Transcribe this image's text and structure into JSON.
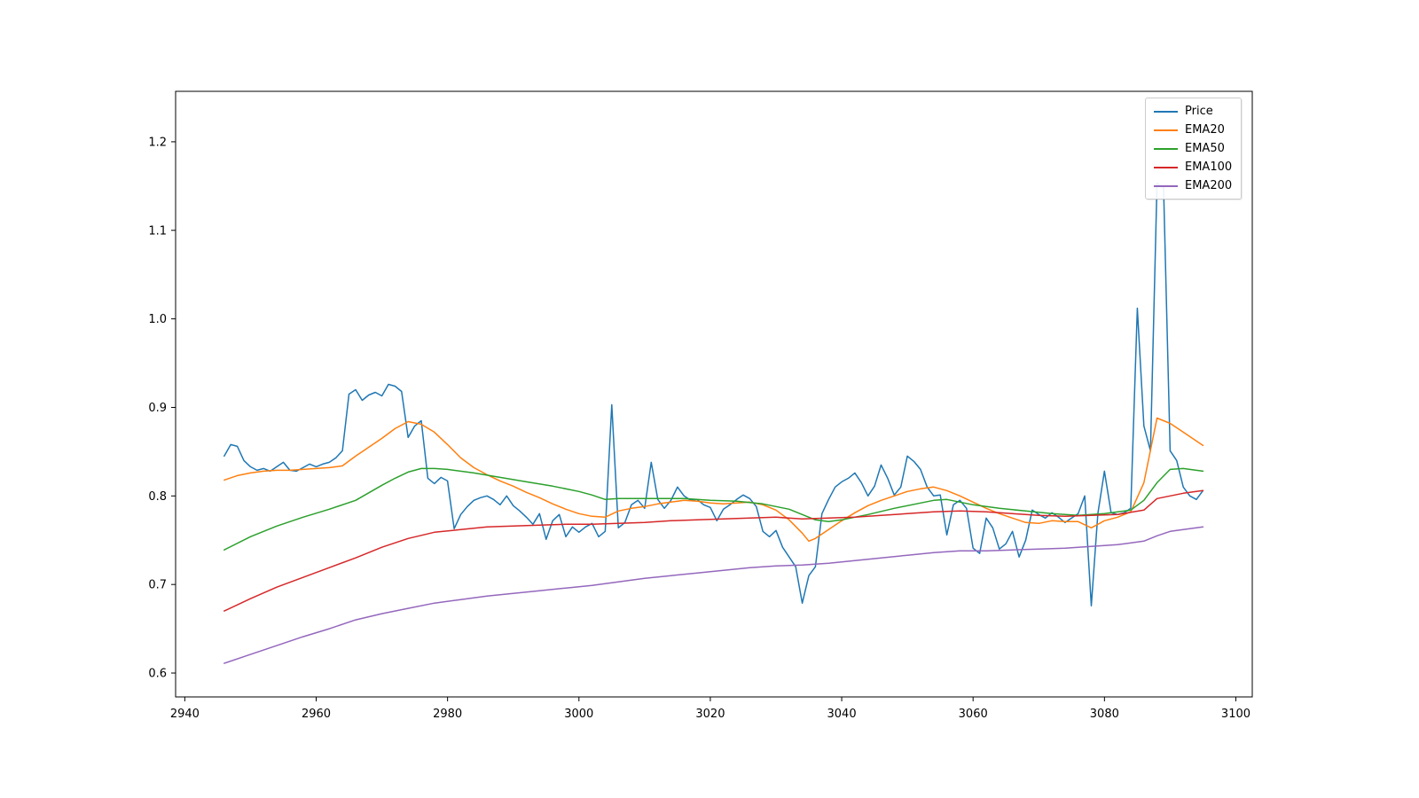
{
  "figure": {
    "background": "#ffffff",
    "plot_border_color": "#000000"
  },
  "chart_data": {
    "type": "line",
    "title": "",
    "xlabel": "",
    "ylabel": "",
    "grid": false,
    "legend_position": "upper right",
    "xlim": [
      2938.6,
      3102.5
    ],
    "ylim": [
      0.573,
      1.257
    ],
    "x_ticks": [
      2940,
      2960,
      2980,
      3000,
      3020,
      3040,
      3060,
      3080,
      3100
    ],
    "y_ticks": [
      0.6,
      0.7,
      0.8,
      0.9,
      1.0,
      1.1,
      1.2
    ],
    "series": [
      {
        "name": "Price",
        "color": "#1f77b4",
        "x_start": 2946,
        "x_step": 1,
        "values": [
          0.845,
          0.858,
          0.856,
          0.84,
          0.833,
          0.829,
          0.831,
          0.828,
          0.833,
          0.838,
          0.829,
          0.828,
          0.832,
          0.836,
          0.833,
          0.836,
          0.838,
          0.843,
          0.851,
          0.915,
          0.92,
          0.908,
          0.914,
          0.917,
          0.913,
          0.926,
          0.924,
          0.918,
          0.866,
          0.879,
          0.885,
          0.82,
          0.814,
          0.821,
          0.817,
          0.763,
          0.779,
          0.788,
          0.795,
          0.798,
          0.8,
          0.796,
          0.79,
          0.8,
          0.789,
          0.783,
          0.776,
          0.768,
          0.78,
          0.751,
          0.772,
          0.779,
          0.754,
          0.765,
          0.759,
          0.765,
          0.769,
          0.754,
          0.76,
          0.903,
          0.764,
          0.77,
          0.79,
          0.795,
          0.786,
          0.838,
          0.796,
          0.786,
          0.795,
          0.81,
          0.8,
          0.795,
          0.796,
          0.79,
          0.787,
          0.772,
          0.785,
          0.79,
          0.796,
          0.801,
          0.797,
          0.788,
          0.76,
          0.754,
          0.761,
          0.742,
          0.731,
          0.72,
          0.679,
          0.71,
          0.72,
          0.78,
          0.796,
          0.81,
          0.816,
          0.82,
          0.826,
          0.815,
          0.8,
          0.811,
          0.835,
          0.82,
          0.801,
          0.81,
          0.845,
          0.839,
          0.83,
          0.81,
          0.8,
          0.801,
          0.756,
          0.79,
          0.795,
          0.786,
          0.741,
          0.735,
          0.775,
          0.764,
          0.74,
          0.746,
          0.76,
          0.731,
          0.75,
          0.784,
          0.779,
          0.775,
          0.781,
          0.776,
          0.77,
          0.775,
          0.78,
          0.8,
          0.676,
          0.78,
          0.828,
          0.781,
          0.779,
          0.781,
          0.786,
          1.012,
          0.879,
          0.851,
          1.153,
          1.148,
          0.851,
          0.84,
          0.81,
          0.8,
          0.796,
          0.806
        ]
      },
      {
        "name": "EMA20",
        "color": "#ff7f0e",
        "x": [
          2946,
          2948,
          2950,
          2952,
          2954,
          2956,
          2958,
          2960,
          2962,
          2964,
          2966,
          2968,
          2970,
          2972,
          2974,
          2976,
          2978,
          2980,
          2982,
          2984,
          2986,
          2988,
          2990,
          2992,
          2994,
          2996,
          2998,
          3000,
          3002,
          3004,
          3006,
          3008,
          3010,
          3012,
          3014,
          3016,
          3018,
          3020,
          3022,
          3024,
          3026,
          3028,
          3030,
          3032,
          3034,
          3035,
          3036,
          3038,
          3040,
          3042,
          3044,
          3046,
          3048,
          3050,
          3052,
          3054,
          3056,
          3058,
          3060,
          3062,
          3064,
          3066,
          3068,
          3070,
          3072,
          3074,
          3076,
          3078,
          3080,
          3082,
          3084,
          3086,
          3088,
          3090,
          3092,
          3094,
          3095
        ],
        "y": [
          0.818,
          0.823,
          0.826,
          0.828,
          0.829,
          0.829,
          0.83,
          0.831,
          0.832,
          0.834,
          0.845,
          0.855,
          0.865,
          0.876,
          0.884,
          0.881,
          0.872,
          0.858,
          0.843,
          0.832,
          0.824,
          0.817,
          0.811,
          0.804,
          0.798,
          0.791,
          0.785,
          0.78,
          0.777,
          0.776,
          0.783,
          0.786,
          0.788,
          0.791,
          0.793,
          0.795,
          0.794,
          0.792,
          0.791,
          0.792,
          0.793,
          0.79,
          0.784,
          0.773,
          0.758,
          0.749,
          0.752,
          0.762,
          0.772,
          0.781,
          0.789,
          0.795,
          0.8,
          0.805,
          0.808,
          0.81,
          0.806,
          0.8,
          0.793,
          0.786,
          0.78,
          0.775,
          0.77,
          0.769,
          0.772,
          0.771,
          0.771,
          0.764,
          0.772,
          0.776,
          0.782,
          0.815,
          0.888,
          0.882,
          0.872,
          0.862,
          0.857
        ]
      },
      {
        "name": "EMA50",
        "color": "#2ca02c",
        "x": [
          2946,
          2950,
          2954,
          2958,
          2962,
          2966,
          2970,
          2972,
          2974,
          2976,
          2978,
          2980,
          2984,
          2988,
          2992,
          2996,
          3000,
          3002,
          3004,
          3006,
          3008,
          3012,
          3016,
          3020,
          3024,
          3028,
          3032,
          3034,
          3036,
          3038,
          3040,
          3044,
          3048,
          3052,
          3054,
          3056,
          3058,
          3060,
          3064,
          3068,
          3072,
          3076,
          3080,
          3084,
          3086,
          3088,
          3090,
          3092,
          3095
        ],
        "y": [
          0.739,
          0.754,
          0.766,
          0.776,
          0.785,
          0.795,
          0.812,
          0.82,
          0.827,
          0.831,
          0.831,
          0.83,
          0.826,
          0.821,
          0.816,
          0.811,
          0.805,
          0.801,
          0.796,
          0.797,
          0.797,
          0.797,
          0.797,
          0.795,
          0.794,
          0.791,
          0.785,
          0.779,
          0.773,
          0.771,
          0.773,
          0.779,
          0.786,
          0.792,
          0.795,
          0.796,
          0.793,
          0.79,
          0.786,
          0.783,
          0.78,
          0.778,
          0.78,
          0.784,
          0.795,
          0.815,
          0.83,
          0.831,
          0.828
        ]
      },
      {
        "name": "EMA100",
        "color": "#d62728",
        "x": [
          2946,
          2950,
          2954,
          2958,
          2962,
          2966,
          2970,
          2974,
          2978,
          2982,
          2986,
          2990,
          2994,
          2998,
          3002,
          3006,
          3010,
          3014,
          3018,
          3022,
          3026,
          3030,
          3034,
          3038,
          3042,
          3046,
          3050,
          3054,
          3058,
          3062,
          3066,
          3070,
          3074,
          3078,
          3082,
          3086,
          3088,
          3090,
          3092,
          3095
        ],
        "y": [
          0.67,
          0.684,
          0.697,
          0.708,
          0.719,
          0.73,
          0.742,
          0.752,
          0.759,
          0.762,
          0.765,
          0.766,
          0.767,
          0.768,
          0.768,
          0.769,
          0.77,
          0.772,
          0.773,
          0.774,
          0.775,
          0.776,
          0.774,
          0.775,
          0.776,
          0.778,
          0.78,
          0.782,
          0.783,
          0.782,
          0.78,
          0.778,
          0.777,
          0.778,
          0.779,
          0.784,
          0.797,
          0.8,
          0.803,
          0.806
        ]
      },
      {
        "name": "EMA200",
        "color": "#9467bd",
        "x": [
          2946,
          2950,
          2954,
          2958,
          2962,
          2966,
          2970,
          2974,
          2978,
          2982,
          2986,
          2990,
          2994,
          2998,
          3002,
          3006,
          3010,
          3014,
          3018,
          3022,
          3026,
          3030,
          3034,
          3038,
          3042,
          3046,
          3050,
          3054,
          3058,
          3062,
          3066,
          3070,
          3074,
          3078,
          3082,
          3086,
          3088,
          3090,
          3092,
          3095
        ],
        "y": [
          0.611,
          0.621,
          0.631,
          0.641,
          0.65,
          0.66,
          0.667,
          0.673,
          0.679,
          0.683,
          0.687,
          0.69,
          0.693,
          0.696,
          0.699,
          0.703,
          0.707,
          0.71,
          0.713,
          0.716,
          0.719,
          0.721,
          0.722,
          0.724,
          0.727,
          0.73,
          0.733,
          0.736,
          0.738,
          0.738,
          0.739,
          0.74,
          0.741,
          0.743,
          0.745,
          0.749,
          0.755,
          0.76,
          0.762,
          0.765
        ]
      }
    ]
  }
}
